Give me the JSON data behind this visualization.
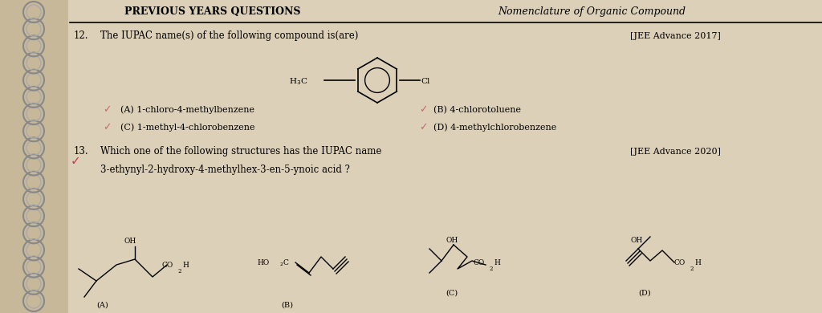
{
  "bg_color": "#d4c9b0",
  "page_bg": "#e8dfc8",
  "title_left": "PREVIOUS YEARS QUESTIONS",
  "title_right": "Nomenclature of Organic Compound",
  "q12_num": "12.",
  "q12_text": "The IUPAC name(s) of the following compound is(are)",
  "q12_ref": "[JEE Advance 2017]",
  "q12_options": [
    "(A) 1-chloro-4-methylbenzene",
    "(C) 1-methyl-4-chlorobenzene",
    "(B) 4-chlorotoluene",
    "(D) 4-methylchlorobenzene"
  ],
  "q13_num": "13.",
  "q13_text": "Which one of the following structures has the IUPAC name",
  "q13_text2": "3-ethynyl-2-hydroxy-4-methylhex-3-en-5-ynoic acid ?",
  "q13_ref": "[JEE Advance 2020]",
  "q13_labels": [
    "(A)",
    "(B)",
    "(C)",
    "(D)"
  ]
}
